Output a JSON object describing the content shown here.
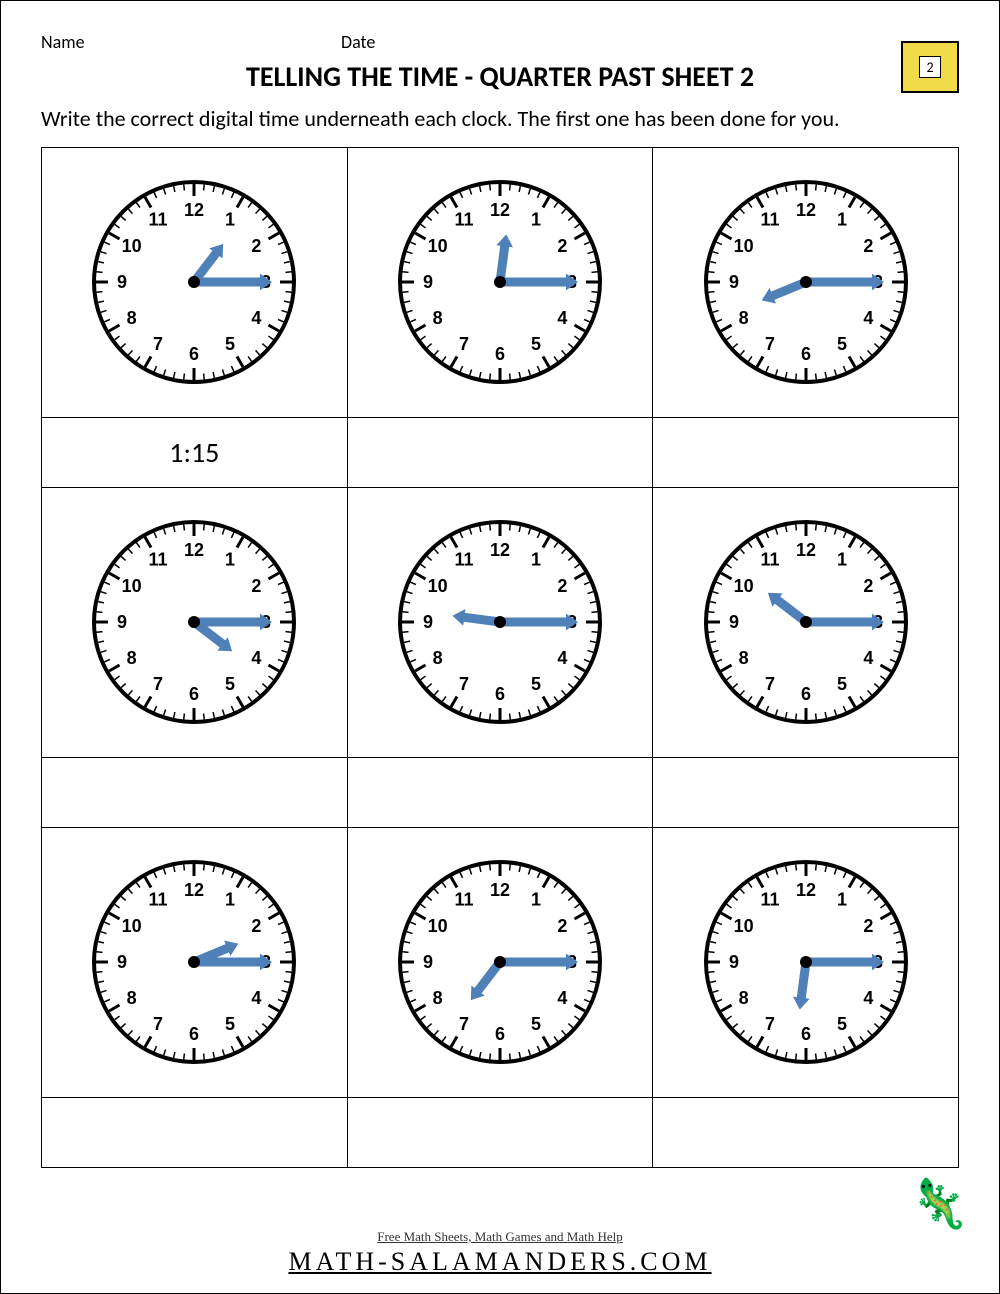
{
  "header": {
    "name_label": "Name",
    "date_label": "Date",
    "grade_badge": "2"
  },
  "title": "TELLING THE TIME - QUARTER PAST SHEET 2",
  "instructions": "Write the correct digital time underneath each clock. The first one has been done for you.",
  "clock_style": {
    "radius": 100,
    "face_stroke": "#000000",
    "face_stroke_width": 4,
    "tick_color": "#000000",
    "number_color": "#000000",
    "number_fontsize": 18,
    "hand_color": "#5080b8",
    "hand_width_hour": 9,
    "hand_width_minute": 9,
    "hour_hand_length": 48,
    "minute_hand_length": 78,
    "pin_radius": 6,
    "arrow_size": 12
  },
  "clocks": [
    {
      "hour": 1,
      "minute": 15,
      "answer": "1:15"
    },
    {
      "hour": 12,
      "minute": 15,
      "answer": ""
    },
    {
      "hour": 8,
      "minute": 15,
      "answer": ""
    },
    {
      "hour": 4,
      "minute": 15,
      "answer": ""
    },
    {
      "hour": 9,
      "minute": 15,
      "answer": ""
    },
    {
      "hour": 10,
      "minute": 15,
      "answer": ""
    },
    {
      "hour": 2,
      "minute": 15,
      "answer": ""
    },
    {
      "hour": 7,
      "minute": 15,
      "answer": ""
    },
    {
      "hour": 6,
      "minute": 15,
      "answer": ""
    }
  ],
  "footer": {
    "tagline": "Free Math Sheets, Math Games and Math Help",
    "brand": "MATH-SALAMANDERS.COM"
  }
}
